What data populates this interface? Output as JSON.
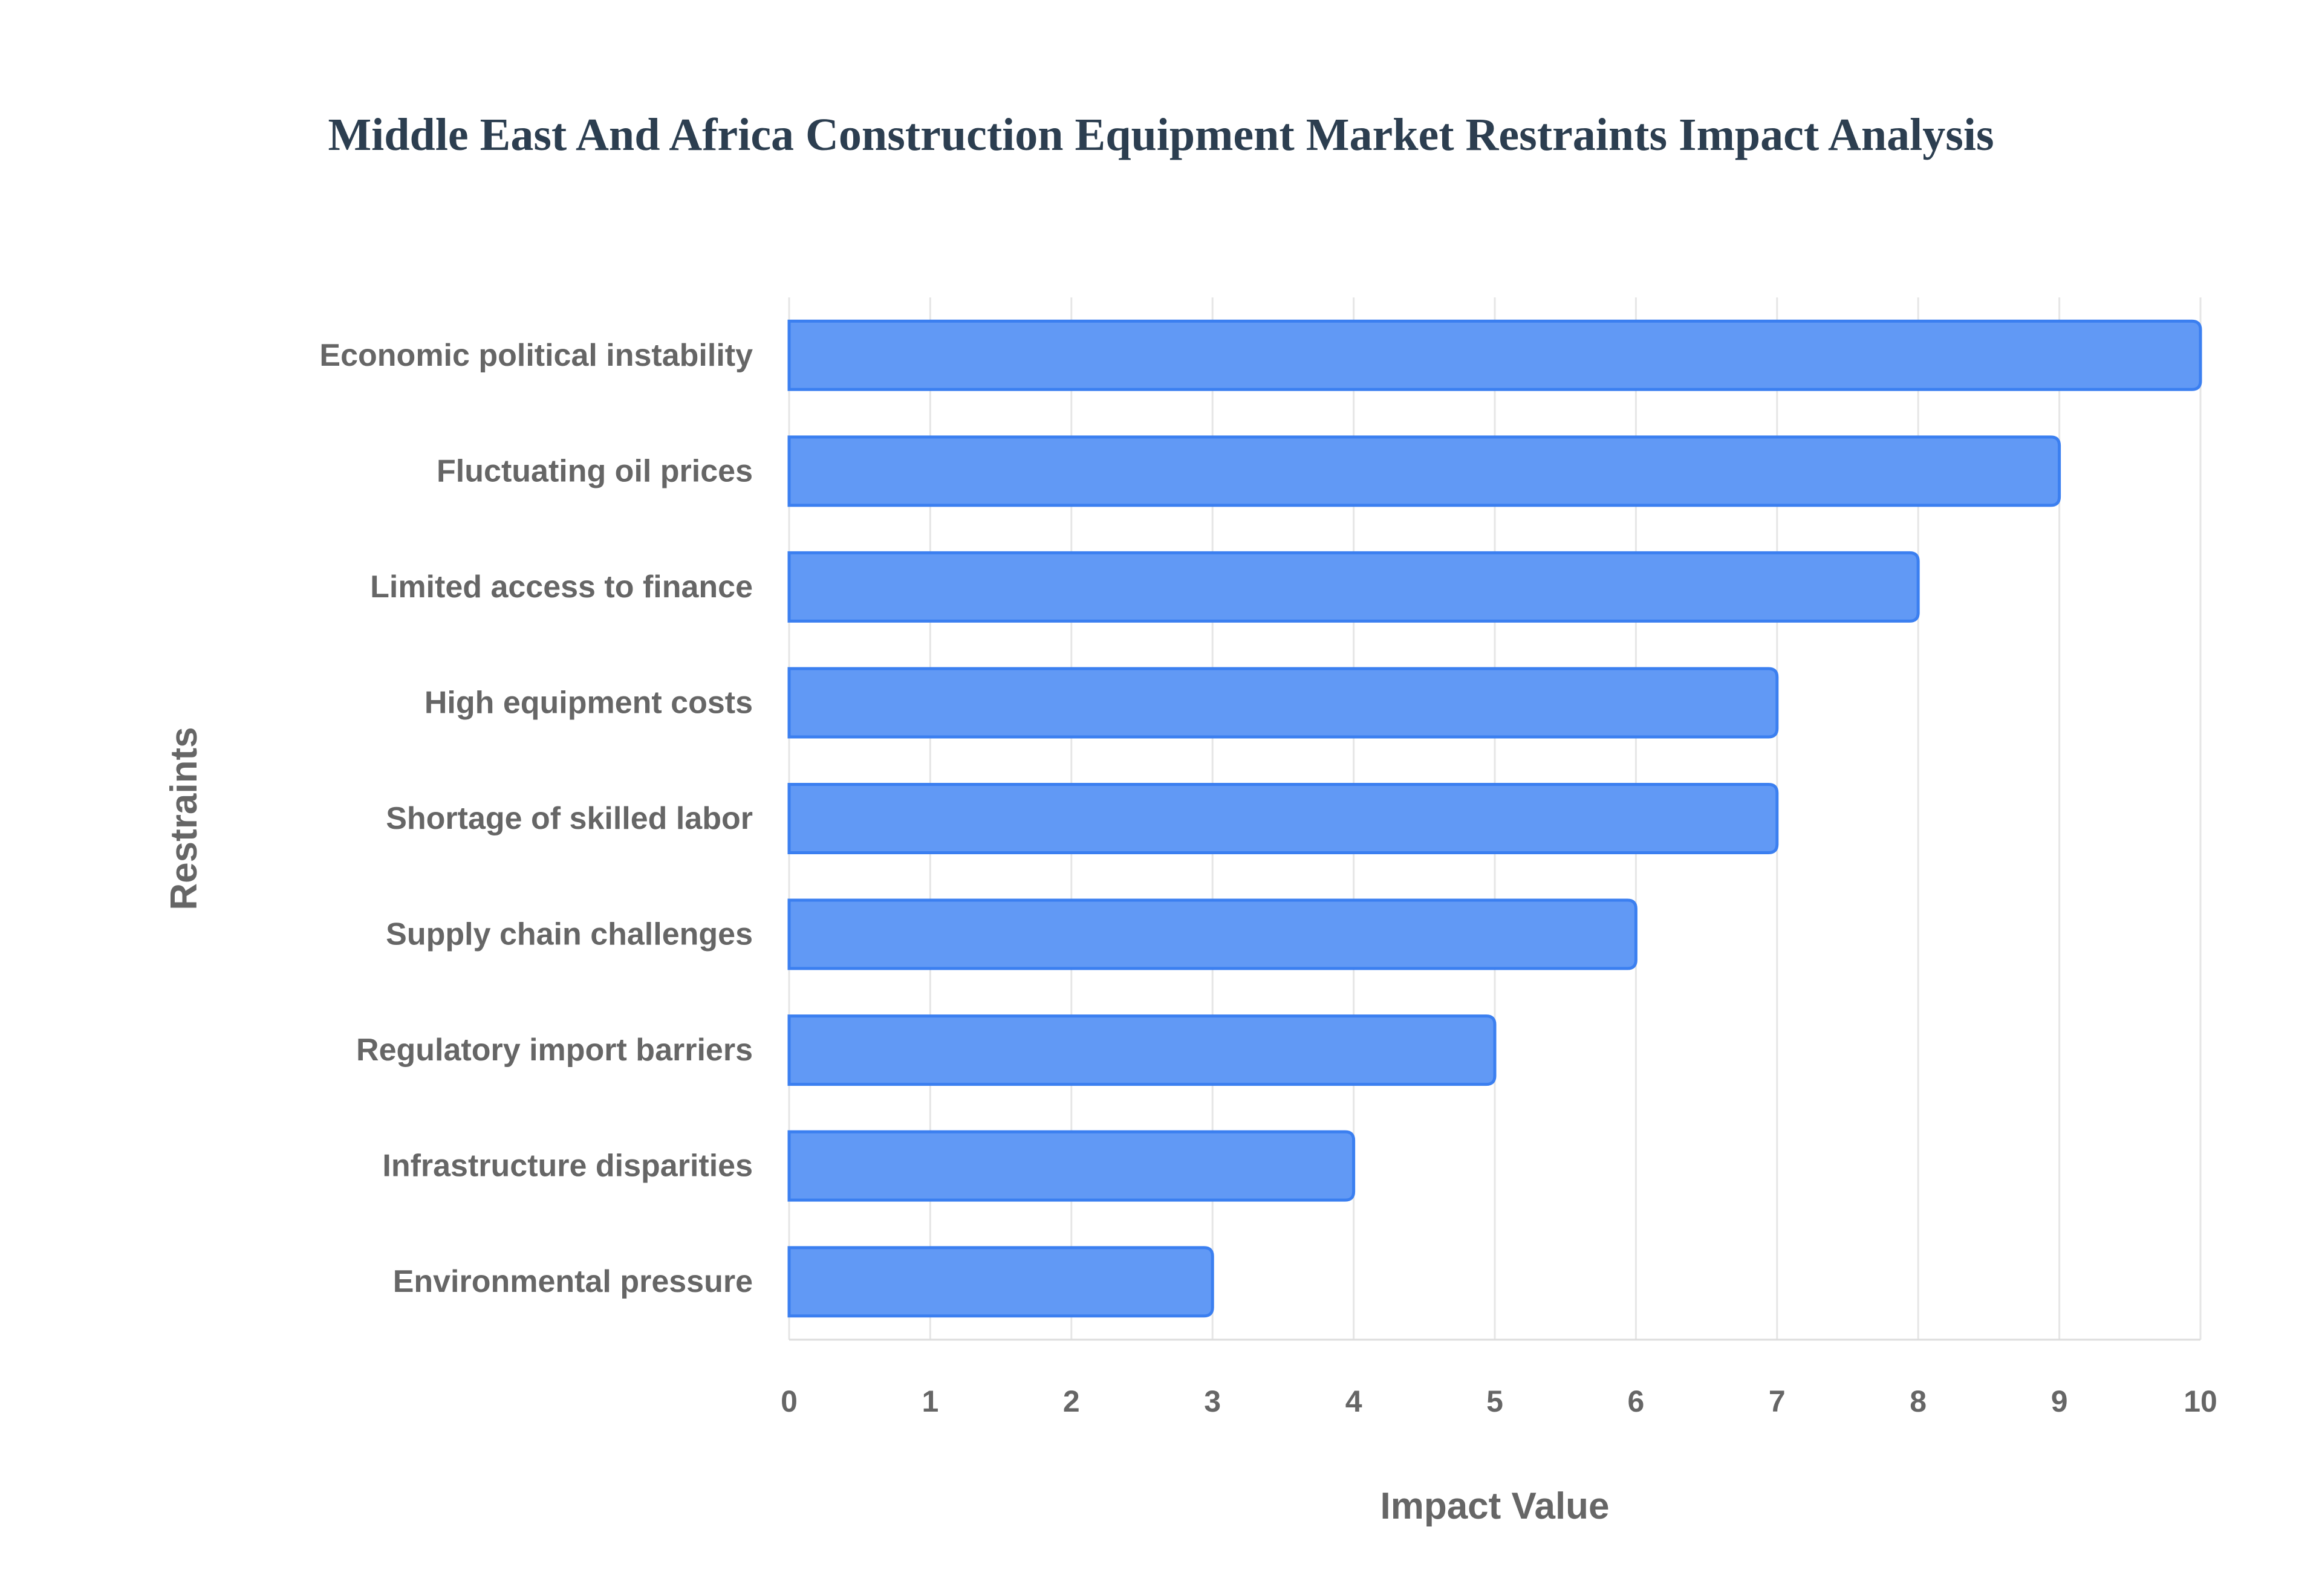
{
  "chart_data": {
    "type": "bar",
    "orientation": "horizontal",
    "title": "Middle East And Africa Construction Equipment Market Restraints Impact Analysis",
    "xlabel": "Impact Value",
    "ylabel": "Restraints",
    "categories": [
      "Economic political instability",
      "Fluctuating oil prices",
      "Limited access to finance",
      "High equipment costs",
      "Shortage of skilled labor",
      "Supply chain challenges",
      "Regulatory import barriers",
      "Infrastructure disparities",
      "Environmental pressure"
    ],
    "values": [
      10,
      9,
      8,
      7,
      7,
      6,
      5,
      4,
      3
    ],
    "xlim": [
      0,
      10
    ],
    "xticks": [
      "0",
      "1",
      "2",
      "3",
      "4",
      "5",
      "6",
      "7",
      "8",
      "9",
      "10"
    ],
    "grid": true,
    "colors": {
      "bar_fill": "#6199f5",
      "bar_border": "#3b7ff0",
      "grid": "#e6e6e6"
    }
  }
}
